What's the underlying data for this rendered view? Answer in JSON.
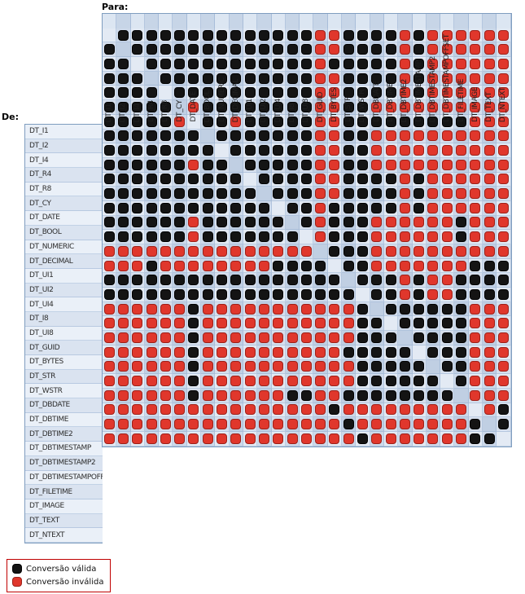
{
  "header": {
    "para_label": "Para:",
    "de_label": "De:"
  },
  "legend": {
    "valid_label": "Conversão válida",
    "invalid_label": "Conversão inválida"
  },
  "colors": {
    "valid_dot": "#141414",
    "invalid_dot": "#e0372c",
    "legend_border": "#c00000"
  },
  "chart_data": {
    "type": "heatmap",
    "title": "",
    "x_axis_label": "Para:",
    "y_axis_label": "De:",
    "legend_position": "bottom-left",
    "encoding": {
      "V": "valid-conversion (black dot)",
      "I": "invalid-conversion (red dot)",
      "-": "same-type diagonal (no dot)"
    },
    "categories": [
      "DT_I1",
      "DT_I2",
      "DT_I4",
      "DT_R4",
      "DT_R8",
      "DT_CY",
      "DT_DATE",
      "DT_BOOL",
      "DT_NUMERIC",
      "DT_DECIMAL",
      "DT_UI1",
      "DT_UI2",
      "DT_UI4",
      "DT_I8",
      "DT_UI8",
      "DT_GUID",
      "DT_BYTES",
      "DT_STR",
      "DT_WSTR",
      "DT_DBDATE",
      "DT_DBTIME",
      "DT_DBTIME2",
      "DT_DBTIMESTAMP",
      "DT_DBTIMESTAMP2",
      "DT_DBTIMESTAMPOFFSET",
      "DT_FILETIME",
      "DT_IMAGE",
      "DT_TEXT",
      "DT_NTEXT"
    ],
    "rows": [
      "-VVVVVVVVVVVVVVIIVVVVIVIIIIII",
      "V-VVVVVVVVVVVVVIIVVVVIVIIIIII",
      "VV-VVVVVVVVVVVVIVVVVVIVIIIIII",
      "VVV-VVVVVVVVVVVIIVVVVIVIIIIII",
      "VVVV-VVVVVVVVVVIIVVVVIVIIIIII",
      "VVVVV-IVVVVVVVVIIVVIIIIIIIIII",
      "VVVVVI-VVIVVVVVIIVVVVVVVVVIII",
      "VVVVVVV-VVVVVVVIIVVIIIIIIIIII",
      "VVVVVVVV-VVVVVVIIVVIIIIIIIIII",
      "VVVVVVIVV-VVVVVIIVVIIIIIIIIII",
      "VVVVVVVVVV-VVVVIIVVVVIVIIIIII",
      "VVVVVVVVVVV-VVVIIVVVVIVIIIIII",
      "VVVVVVVVVVVV-VVIVVVVVIVIIIIII",
      "VVVVVVIVVVVVV-VIVVVIIIIIIVIII",
      "VVVVVVIVVVVVVV-IVVVIIIIIIVIII",
      "IIIIIIIIIIIIIII-VVVIIIIIIIIII",
      "IIIVIIIIIIIIVVVV-VVIIIIIIIVVV",
      "VVVVVVVVVVVVVVVVV-VVVIVIIVVVV",
      "VVVVVVVVVVVVVVVVVV-VVIVIIVVVV",
      "IIIIIIVIIIIIIIIIIIV-VVVVVVIII",
      "IIIIIIVIIIIIIIIIIIVV-VVVVVIII",
      "IIIIIIVIIIIIIIIIIIVVV-VVVVIII",
      "IIIIIIVIIIIIIIIIIVVVVV-VVVIII",
      "IIIIIIVIIIIIIIIIIIVVVVV-VVIII",
      "IIIIIIVIIIIIIIIIIIVVVVVV-VIII",
      "IIIIIIVIIIIIIVVIIVVVVVVVV-III",
      "IIIIIIIIIIIIIIIIVIIIIIIIII-IV",
      "IIIIIIIIIIIIIIIIIVIIIIIIIIV-V",
      "IIIIIIIIIIIIIIIIIIVIIIIIIIVV-"
    ]
  }
}
